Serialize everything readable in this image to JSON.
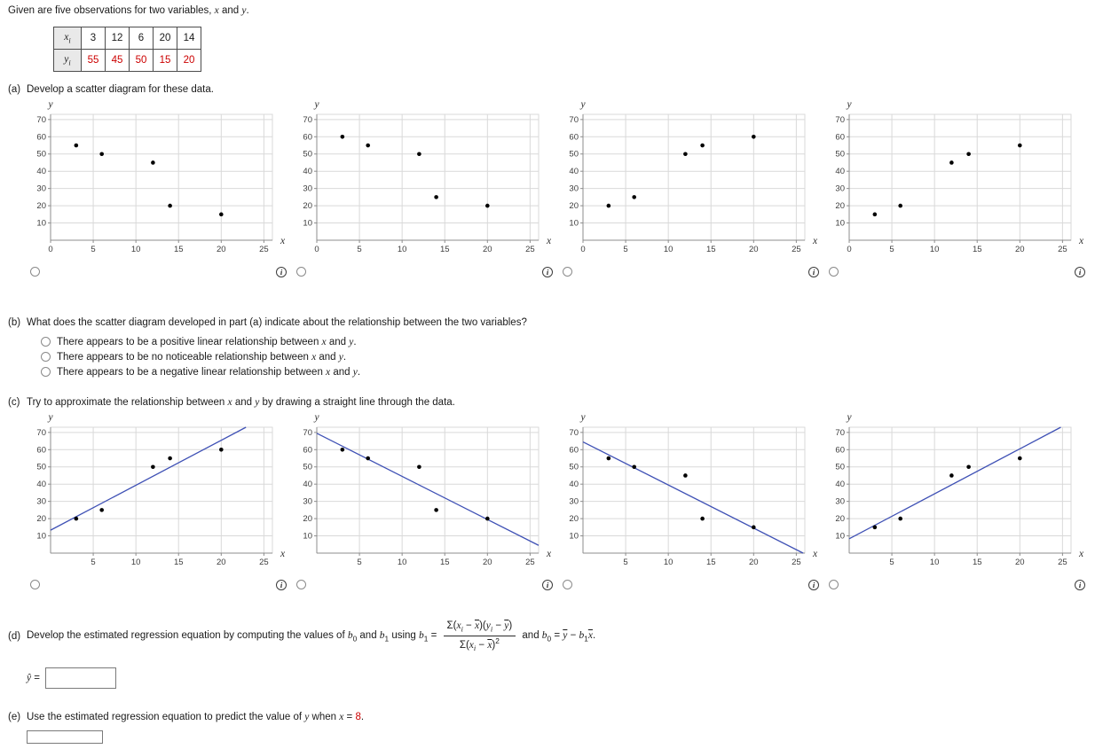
{
  "intro": [
    [
      "Given are five observations for two variables, "
    ],
    [
      "x",
      "var"
    ],
    [
      " and "
    ],
    [
      "y",
      "var"
    ],
    [
      "."
    ]
  ],
  "data_table": {
    "x_label": [
      [
        "x",
        "var"
      ],
      [
        "i",
        "var sub"
      ]
    ],
    "y_label": [
      [
        "y",
        "var"
      ],
      [
        "i",
        "var sub"
      ]
    ],
    "x_values": [
      "3",
      "12",
      "6",
      "20",
      "14"
    ],
    "y_values": [
      "55",
      "45",
      "50",
      "15",
      "20"
    ]
  },
  "part_a": {
    "label": "(a)",
    "prompt": [
      [
        "Develop a scatter diagram for these data."
      ]
    ]
  },
  "part_b": {
    "label": "(b)",
    "prompt": [
      [
        "What does the scatter diagram developed in part (a) indicate about the relationship between the two variables?"
      ]
    ],
    "options": [
      [
        [
          "There appears to be a positive linear relationship between "
        ],
        [
          "x",
          "var"
        ],
        [
          " and "
        ],
        [
          "y",
          "var"
        ],
        [
          "."
        ]
      ],
      [
        [
          "There appears to be no noticeable relationship between "
        ],
        [
          "x",
          "var"
        ],
        [
          " and "
        ],
        [
          "y",
          "var"
        ],
        [
          "."
        ]
      ],
      [
        [
          "There appears to be a negative linear relationship between "
        ],
        [
          "x",
          "var"
        ],
        [
          " and "
        ],
        [
          "y",
          "var"
        ],
        [
          "."
        ]
      ]
    ]
  },
  "part_c": {
    "label": "(c)",
    "prompt": [
      [
        "Try to approximate the relationship between "
      ],
      [
        "x",
        "var"
      ],
      [
        " and "
      ],
      [
        "y",
        "var"
      ],
      [
        " by drawing a straight line through the data."
      ]
    ]
  },
  "part_d": {
    "label": "(d)",
    "prompt_before": [
      [
        "Develop the estimated regression equation by computing the values of "
      ],
      [
        "b",
        "var"
      ],
      [
        "0",
        "sub"
      ],
      [
        " and "
      ],
      [
        "b",
        "var"
      ],
      [
        "1",
        "sub"
      ],
      [
        " using "
      ],
      [
        "b",
        "var"
      ],
      [
        "1",
        "sub"
      ],
      [
        " = "
      ]
    ],
    "fraction_num": [
      [
        "Σ("
      ],
      [
        "x",
        "var"
      ],
      [
        "i",
        "var sub"
      ],
      [
        " − "
      ],
      [
        "x",
        "var bar"
      ],
      [
        ")("
      ],
      [
        "y",
        "var"
      ],
      [
        "i",
        "var sub"
      ],
      [
        " − "
      ],
      [
        "y",
        "var bar"
      ],
      [
        ")"
      ]
    ],
    "fraction_den": [
      [
        "Σ("
      ],
      [
        "x",
        "var"
      ],
      [
        "i",
        "var sub"
      ],
      [
        " − "
      ],
      [
        "x",
        "var bar"
      ],
      [
        ")"
      ],
      [
        "2",
        "sup"
      ]
    ],
    "prompt_after": [
      [
        " and "
      ],
      [
        "b",
        "var"
      ],
      [
        "0",
        "sub"
      ],
      [
        " = "
      ],
      [
        "y",
        "var bar"
      ],
      [
        " − "
      ],
      [
        "b",
        "var"
      ],
      [
        "1",
        "sub"
      ],
      [
        "x",
        "var bar"
      ],
      [
        "."
      ]
    ],
    "answer_label": [
      [
        "ŷ",
        "var"
      ],
      [
        " ="
      ]
    ],
    "answer_value": ""
  },
  "part_e": {
    "label": "(e)",
    "prompt": [
      [
        "Use the estimated regression equation to predict the value of "
      ],
      [
        "y",
        "var"
      ],
      [
        " when "
      ],
      [
        "x",
        "var"
      ],
      [
        " = "
      ],
      [
        "8",
        "red"
      ],
      [
        "."
      ]
    ]
  },
  "colors": {
    "line": "#3f51b5",
    "point": "#000000",
    "red": "#cc0000",
    "grid": "#d9d9d9",
    "axis": "#8c8c8c",
    "text": "#1a1a1a"
  },
  "axes": {
    "xlabel": "x",
    "ylabel": "y",
    "xlim": [
      0,
      25
    ],
    "ylim": [
      0,
      70
    ],
    "xticks": [
      5,
      10,
      15,
      20,
      25
    ],
    "yticks": [
      10,
      20,
      30,
      40,
      50,
      60,
      70
    ],
    "grid": true
  },
  "chart_data": [
    {
      "id": "a1",
      "type": "scatter",
      "points": [
        [
          3,
          55
        ],
        [
          6,
          50
        ],
        [
          12,
          45
        ],
        [
          14,
          20
        ],
        [
          20,
          15
        ]
      ],
      "show_origin_zero": true
    },
    {
      "id": "a2",
      "type": "scatter",
      "points": [
        [
          3,
          60
        ],
        [
          6,
          55
        ],
        [
          12,
          50
        ],
        [
          14,
          25
        ],
        [
          20,
          20
        ]
      ],
      "show_origin_zero": true
    },
    {
      "id": "a3",
      "type": "scatter",
      "points": [
        [
          3,
          20
        ],
        [
          6,
          25
        ],
        [
          12,
          50
        ],
        [
          14,
          55
        ],
        [
          20,
          60
        ]
      ],
      "show_origin_zero": true
    },
    {
      "id": "a4",
      "type": "scatter",
      "points": [
        [
          3,
          15
        ],
        [
          6,
          20
        ],
        [
          12,
          45
        ],
        [
          14,
          50
        ],
        [
          20,
          55
        ]
      ],
      "show_origin_zero": true
    },
    {
      "id": "c1",
      "type": "scatter",
      "points": [
        [
          3,
          20
        ],
        [
          6,
          25
        ],
        [
          12,
          50
        ],
        [
          14,
          55
        ],
        [
          20,
          60
        ]
      ],
      "show_origin_zero": false,
      "line": {
        "intercept": 13.3,
        "slope": 2.61,
        "endpoints": [
          [
            0,
            13.3
          ],
          [
            22.9,
            73
          ]
        ]
      }
    },
    {
      "id": "c2",
      "type": "scatter",
      "points": [
        [
          3,
          60
        ],
        [
          6,
          55
        ],
        [
          12,
          50
        ],
        [
          14,
          25
        ],
        [
          20,
          20
        ]
      ],
      "show_origin_zero": false,
      "line": {
        "intercept": 69.5,
        "slope": -2.5,
        "endpoints": [
          [
            0,
            69.5
          ],
          [
            26,
            4.5
          ]
        ]
      }
    },
    {
      "id": "c3",
      "type": "scatter",
      "points": [
        [
          3,
          55
        ],
        [
          6,
          50
        ],
        [
          12,
          45
        ],
        [
          14,
          20
        ],
        [
          20,
          15
        ]
      ],
      "show_origin_zero": false,
      "line": {
        "intercept": 64.5,
        "slope": -2.5,
        "endpoints": [
          [
            0,
            64.5
          ],
          [
            25.8,
            0
          ]
        ]
      }
    },
    {
      "id": "c4",
      "type": "scatter",
      "points": [
        [
          3,
          15
        ],
        [
          6,
          20
        ],
        [
          12,
          45
        ],
        [
          14,
          50
        ],
        [
          20,
          55
        ]
      ],
      "show_origin_zero": false,
      "line": {
        "intercept": 8.3,
        "slope": 2.61,
        "endpoints": [
          [
            0,
            8.3
          ],
          [
            24.8,
            73
          ]
        ]
      }
    }
  ]
}
